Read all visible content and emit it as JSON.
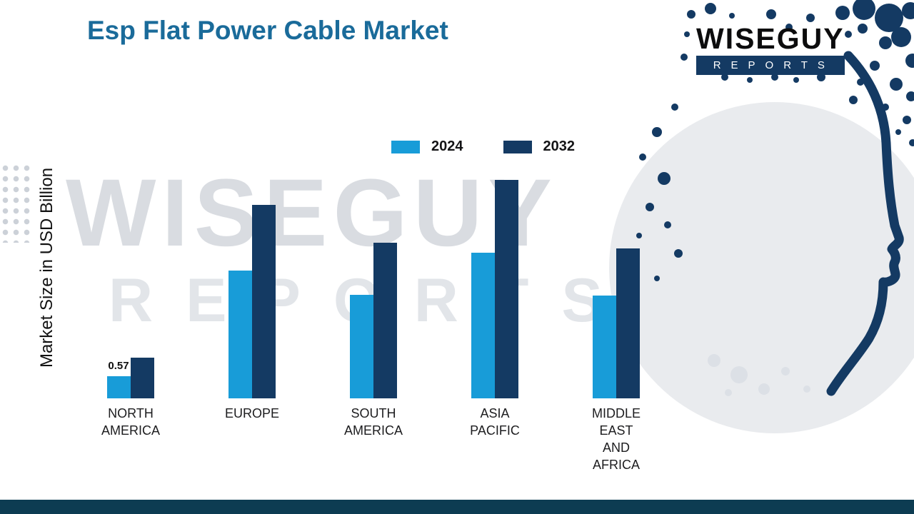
{
  "page": {
    "title": "Esp Flat Power Cable Market"
  },
  "logo": {
    "brand_top": "WISEGUY",
    "brand_bottom": "REPORTS"
  },
  "watermark": {
    "line1": "WISEGUY",
    "line2": "REPORTS"
  },
  "colors": {
    "title": "#1a6b9a",
    "series_2024": "#189cd8",
    "series_2032": "#143a63",
    "navy": "#143a63",
    "footer": "#0d3c52"
  },
  "chart_data": {
    "type": "bar",
    "title": "Esp Flat Power Cable Market",
    "xlabel": "",
    "ylabel": "Market Size in USD Billion",
    "ylim": [
      0,
      6
    ],
    "grid": false,
    "legend_position": "top",
    "categories": [
      "NORTH AMERICA",
      "EUROPE",
      "SOUTH AMERICA",
      "ASIA PACIFIC",
      "MIDDLE EAST AND AFRICA"
    ],
    "category_lines": [
      [
        "NORTH",
        "AMERICA"
      ],
      [
        "EUROPE"
      ],
      [
        "SOUTH",
        "AMERICA"
      ],
      [
        "ASIA",
        "PACIFIC"
      ],
      [
        "MIDDLE",
        "EAST",
        "AND",
        "AFRICA"
      ]
    ],
    "series": [
      {
        "name": "2024",
        "color": "#189cd8",
        "values": [
          0.57,
          3.26,
          2.64,
          3.71,
          2.62
        ]
      },
      {
        "name": "2032",
        "color": "#143a63",
        "values": [
          1.04,
          4.93,
          3.96,
          5.56,
          3.82
        ]
      }
    ],
    "value_labels": [
      "0.57",
      "",
      "",
      "",
      ""
    ]
  }
}
